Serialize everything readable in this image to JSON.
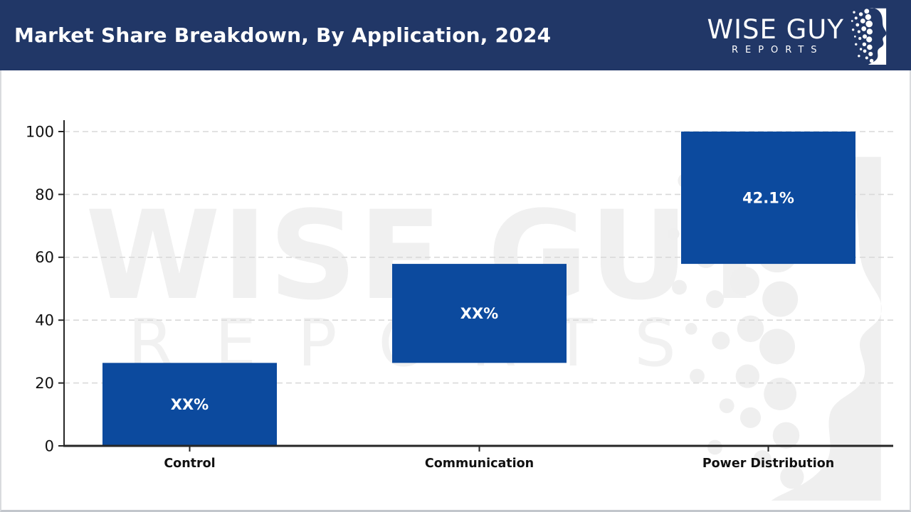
{
  "header": {
    "title": "Market Share Breakdown, By Application, 2024",
    "logo": {
      "line1": "WISE GUY",
      "line2": "REPORTS"
    }
  },
  "watermark": {
    "line1": "WISE GUY",
    "line2": "REPORTS"
  },
  "chart_data": {
    "type": "bar",
    "subtype": "floating-waterfall",
    "title": "Market Share Breakdown, By Application, 2024",
    "categories": [
      "Control",
      "Communication",
      "Power Distribution"
    ],
    "series": [
      {
        "name": "segment-control",
        "category": "Control",
        "start": 0,
        "end": 26.4,
        "label": "XX%"
      },
      {
        "name": "segment-communication",
        "category": "Communication",
        "start": 26.4,
        "end": 57.9,
        "label": "XX%"
      },
      {
        "name": "segment-power-distribution",
        "category": "Power Distribution",
        "start": 57.9,
        "end": 100,
        "label": "42.1%"
      }
    ],
    "xlabel": "",
    "ylabel": "",
    "yticks": [
      0,
      20,
      40,
      60,
      80,
      100
    ],
    "ylim": [
      0,
      107
    ],
    "grid": "horizontal-dashed",
    "legend": "none",
    "bar_color": "#0c4a9e",
    "bar_label_color": "#ffffff",
    "axis_color": "#262626",
    "grid_color": "#d9d9d9",
    "tick_label_color": "#111111"
  },
  "colors": {
    "header_bg": "#213767",
    "page_bg": "#ffffff",
    "watermark": "#f0f0f0",
    "border": "#c2c6cc"
  }
}
